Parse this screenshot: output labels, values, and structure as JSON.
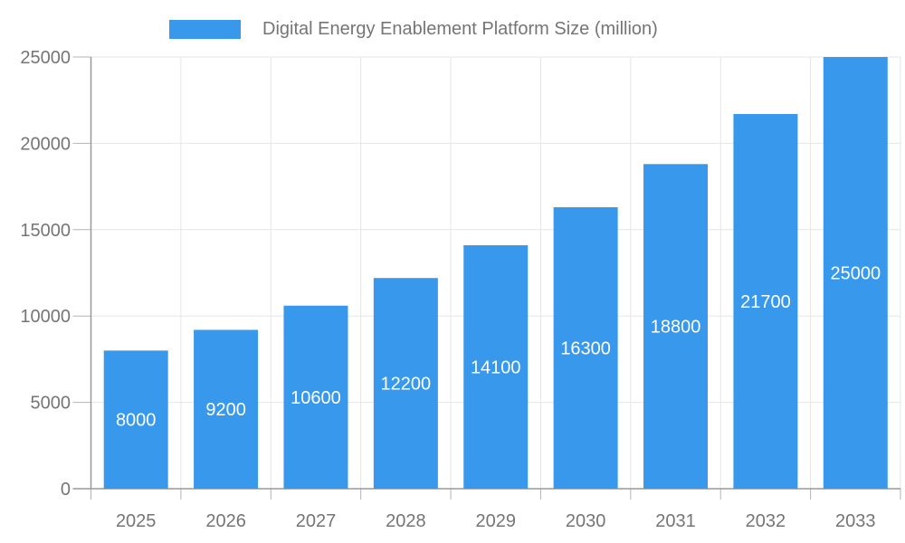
{
  "chart_data": {
    "type": "bar",
    "title": "Digital Energy Enablement Platform Size (million)",
    "categories": [
      "2025",
      "2026",
      "2027",
      "2028",
      "2029",
      "2030",
      "2031",
      "2032",
      "2033"
    ],
    "values": [
      8000,
      9200,
      10600,
      12200,
      14100,
      16300,
      18800,
      21700,
      25000
    ],
    "bar_labels": [
      "8000",
      "9200",
      "10600",
      "12200",
      "14100",
      "16300",
      "18800",
      "21700",
      "25000"
    ],
    "xlabel": "",
    "ylabel": "",
    "ylim": [
      0,
      25000
    ],
    "yticks": [
      0,
      5000,
      10000,
      15000,
      20000,
      25000
    ],
    "ytick_labels": [
      "0",
      "5000",
      "10000",
      "15000",
      "20000",
      "25000"
    ],
    "grid": true,
    "legend_position": "top",
    "colors": {
      "bar": "#3898EC",
      "bar_label": "#FFFFFF",
      "axis_text": "#757575",
      "grid_line": "#E6E6E6",
      "axis_line": "#999999",
      "tick_line": "#B3B3B3"
    }
  }
}
